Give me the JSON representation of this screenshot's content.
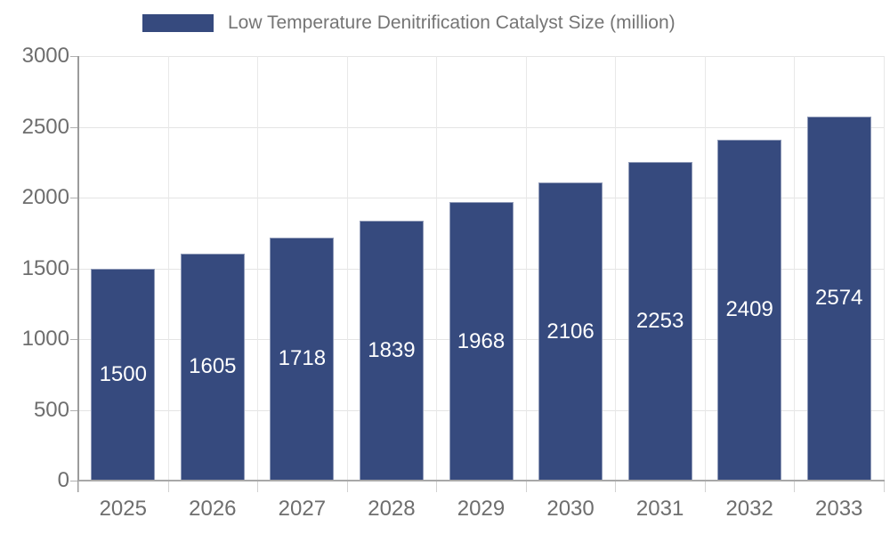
{
  "legend": {
    "label": "Low Temperature Denitrification Catalyst Size (million)"
  },
  "chart_data": {
    "type": "bar",
    "title": "Low Temperature Denitrification Catalyst Size (million)",
    "categories": [
      "2025",
      "2026",
      "2027",
      "2028",
      "2029",
      "2030",
      "2031",
      "2032",
      "2033"
    ],
    "values": [
      1500,
      1605,
      1718,
      1839,
      1968,
      2106,
      2253,
      2409,
      2574
    ],
    "xlabel": "",
    "ylabel": "",
    "ylim": [
      0,
      3000
    ],
    "yticks": [
      0,
      500,
      1000,
      1500,
      2000,
      2500,
      3000
    ],
    "grid": true,
    "legend_position": "top",
    "bar_color": "#364a7e",
    "value_label_color": "#ffffff",
    "axis_label_color": "#6e6e6e"
  }
}
